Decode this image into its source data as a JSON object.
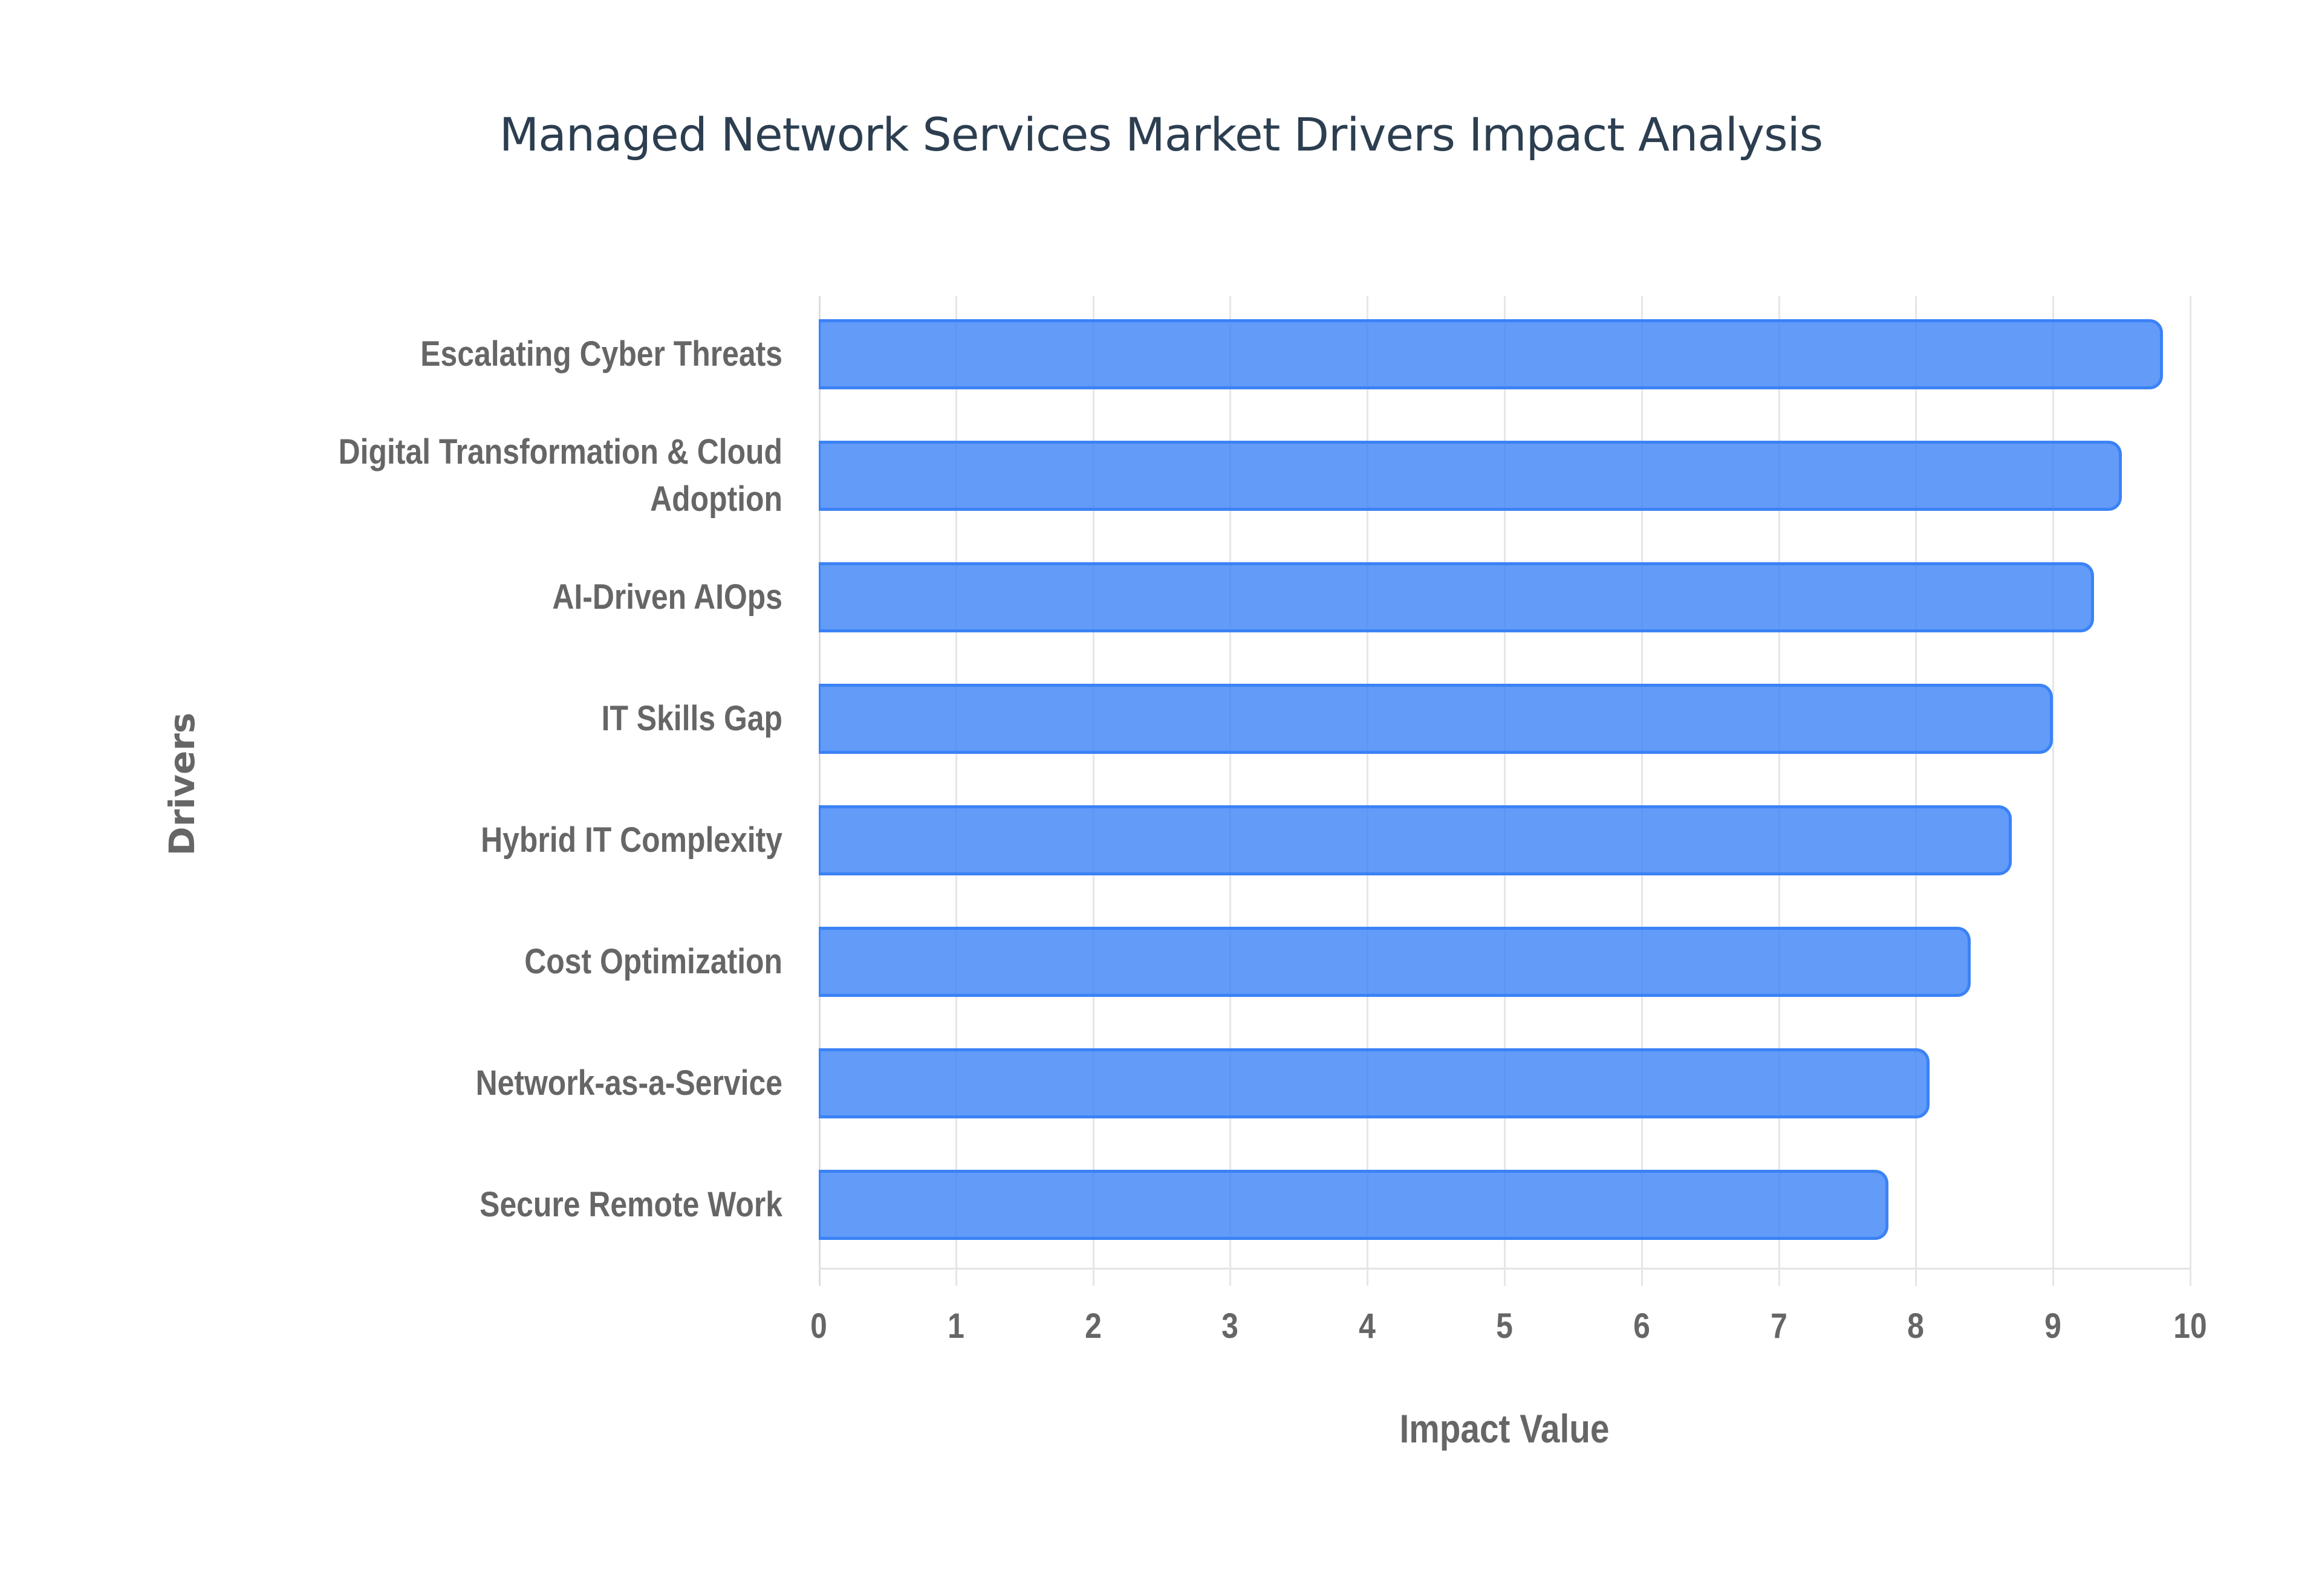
{
  "title": "Managed Network Services Market Drivers Impact Analysis",
  "colors": {
    "bar_fill": "#629BF5",
    "bar_border": "#3B82F6",
    "title": "#2C3E50",
    "axis_text": "#666666",
    "gridline": "#E6E6E6"
  },
  "axes": {
    "x_title": "Impact Value",
    "y_title": "Drivers",
    "x_ticks": [
      "0",
      "1",
      "2",
      "3",
      "4",
      "5",
      "6",
      "7",
      "8",
      "9",
      "10"
    ]
  },
  "categories": [
    {
      "label_line1": "Escalating Cyber Threats",
      "label_line2": "",
      "value": 9.8
    },
    {
      "label_line1": "Digital Transformation & Cloud",
      "label_line2": "Adoption",
      "value": 9.5
    },
    {
      "label_line1": "AI-Driven AIOps",
      "label_line2": "",
      "value": 9.3
    },
    {
      "label_line1": "IT Skills Gap",
      "label_line2": "",
      "value": 9.0
    },
    {
      "label_line1": "Hybrid IT Complexity",
      "label_line2": "",
      "value": 8.7
    },
    {
      "label_line1": "Cost Optimization",
      "label_line2": "",
      "value": 8.4
    },
    {
      "label_line1": "Network-as-a-Service",
      "label_line2": "",
      "value": 8.1
    },
    {
      "label_line1": "Secure Remote Work",
      "label_line2": "",
      "value": 7.8
    }
  ],
  "chart_data": {
    "type": "bar",
    "orientation": "horizontal",
    "title": "Managed Network Services Market Drivers Impact Analysis",
    "xlabel": "Impact Value",
    "ylabel": "Drivers",
    "categories": [
      "Escalating Cyber Threats",
      "Digital Transformation & Cloud Adoption",
      "AI-Driven AIOps",
      "IT Skills Gap",
      "Hybrid IT Complexity",
      "Cost Optimization",
      "Network-as-a-Service",
      "Secure Remote Work"
    ],
    "values": [
      9.8,
      9.5,
      9.3,
      9.0,
      8.7,
      8.4,
      8.1,
      7.8
    ],
    "xlim": [
      0,
      10
    ],
    "x_ticks": [
      0,
      1,
      2,
      3,
      4,
      5,
      6,
      7,
      8,
      9,
      10
    ],
    "grid": "vertical gridlines on",
    "legend": "none"
  }
}
